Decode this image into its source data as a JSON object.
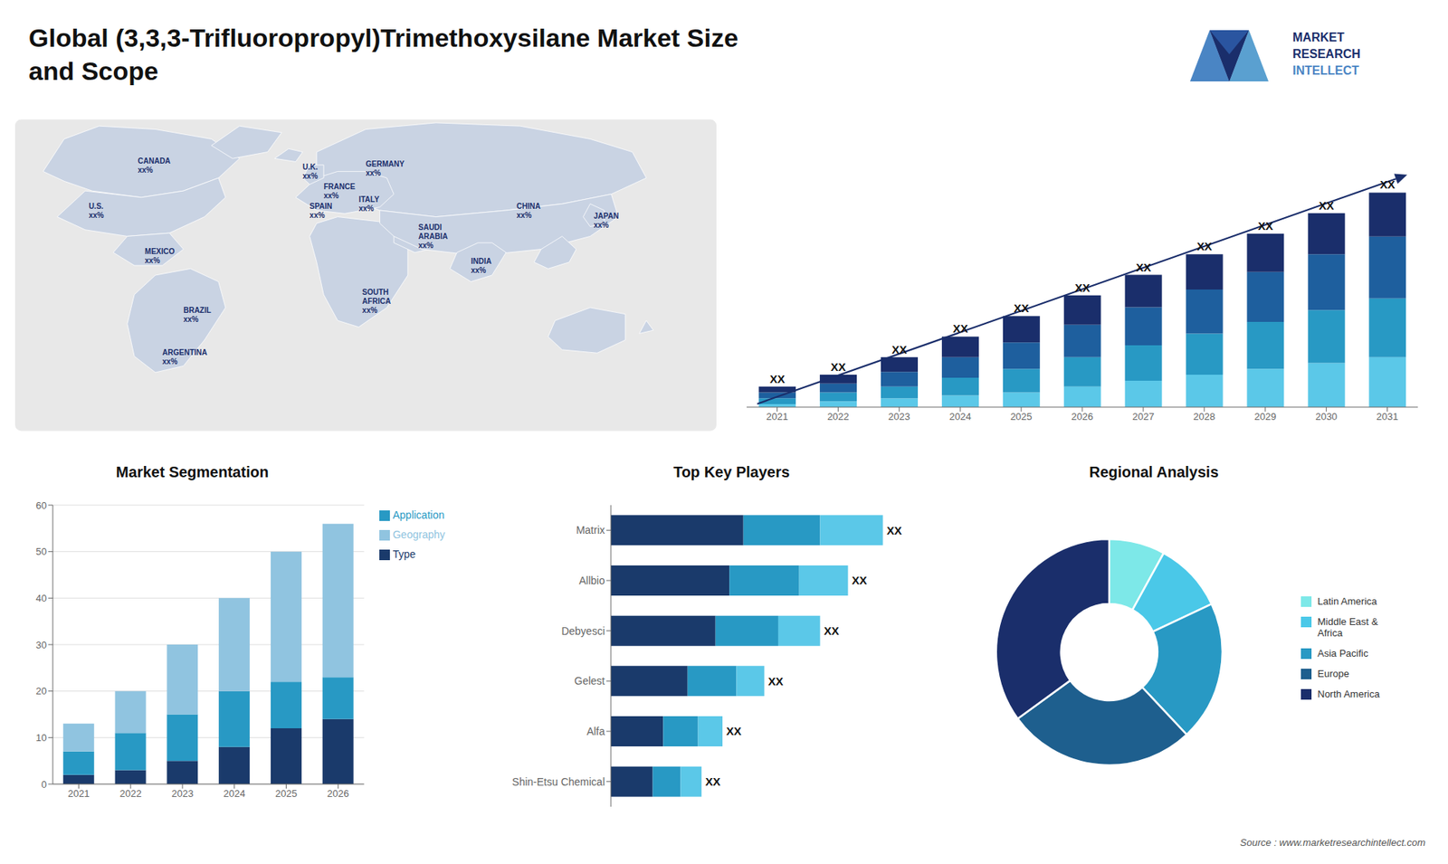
{
  "title": "Global (3,3,3-Trifluoropropyl)Trimethoxysilane Market Size\nand Scope",
  "annotations": [
    "MARKET",
    "RESEARCH",
    "INTELLECT",
    "Source : www.marketresearchintellect.com"
  ],
  "chart_data": [
    {
      "type": "map",
      "annotations": [
        "CANADA\nxx%",
        "U.S.\nxx%",
        "MEXICO\nxx%",
        "BRAZIL\nxx%",
        "ARGENTINA\nxx%",
        "U.K.\nxx%",
        "FRANCE\nxx%",
        "SPAIN\nxx%",
        "GERMANY\nxx%",
        "ITALY\nxx%",
        "SAUDI\nARABIA\nxx%",
        "SOUTH\nAFRICA\nxx%",
        "CHINA\nxx%",
        "JAPAN\nxx%",
        "INDIA\nxx%"
      ]
    },
    {
      "type": "bar",
      "stacked": true,
      "categories": [
        "2021",
        "2022",
        "2023",
        "2024",
        "2025",
        "2026",
        "2027",
        "2028",
        "2029",
        "2030",
        "2031"
      ],
      "series": [
        {
          "color": "#5bc8e8",
          "values": [
            1,
            2,
            3,
            4,
            5,
            7,
            9,
            11,
            13,
            15,
            17
          ]
        },
        {
          "color": "#2899c4",
          "values": [
            2,
            3,
            4,
            6,
            8,
            10,
            12,
            14,
            16,
            18,
            20
          ]
        },
        {
          "color": "#1e5f9e",
          "values": [
            2,
            3,
            5,
            7,
            9,
            11,
            13,
            15,
            17,
            19,
            21
          ]
        },
        {
          "color": "#1a2e6b",
          "values": [
            2,
            3,
            5,
            7,
            9,
            10,
            11,
            12,
            13,
            14,
            15
          ]
        }
      ],
      "ylim": [
        0,
        94.9
      ],
      "tick_labels": "x",
      "annotations": [
        "XX",
        "XX",
        "XX",
        "XX",
        "XX",
        "XX",
        "XX",
        "XX",
        "XX",
        "XX",
        "XX"
      ]
    },
    {
      "type": "bar",
      "title": "Market Segmentation",
      "stacked": true,
      "categories": [
        "2021",
        "2022",
        "2023",
        "2024",
        "2025",
        "2026"
      ],
      "series": [
        {
          "name": "Type",
          "color": "#1a3a6b",
          "values": [
            2,
            3,
            5,
            8,
            12,
            14
          ]
        },
        {
          "name": "Application",
          "color": "#2899c4",
          "values": [
            5,
            8,
            10,
            12,
            10,
            9
          ]
        },
        {
          "name": "Geography",
          "color": "#90c4e0",
          "values": [
            6,
            9,
            15,
            20,
            28,
            33
          ]
        }
      ],
      "ylim": [
        0,
        60
      ],
      "yticks": [
        0,
        10,
        20,
        30,
        40,
        50,
        60
      ],
      "grid": true,
      "legend": "right"
    },
    {
      "type": "bar",
      "title": "Top Key Players",
      "orientation": "horizontal",
      "stacked": true,
      "categories": [
        "Matrix",
        "Allbio",
        "Debyesci",
        "Gelest",
        "Alfa",
        "Shin-Etsu Chemical"
      ],
      "series": [
        {
          "color": "#1a3a6b",
          "values": [
            38,
            34,
            30,
            22,
            15,
            12
          ]
        },
        {
          "color": "#2899c4",
          "values": [
            22,
            20,
            18,
            14,
            10,
            8
          ]
        },
        {
          "color": "#5bc8e8",
          "values": [
            18,
            14,
            12,
            8,
            7,
            6
          ]
        }
      ],
      "xlim": [
        0,
        95.16
      ],
      "tick_labels": "y",
      "annotations": [
        "XX",
        "XX",
        "XX",
        "XX",
        "XX",
        "XX"
      ]
    },
    {
      "type": "pie",
      "title": "Regional Analysis",
      "categories": [
        "Latin America",
        "Middle East &\nAfrica",
        "Asia Pacific",
        "Europe",
        "North America"
      ],
      "values": [
        8,
        10,
        20,
        27,
        35
      ],
      "colors": [
        "#7de8e8",
        "#4ac8e8",
        "#2899c4",
        "#1e5f8e",
        "#1a2e6b"
      ],
      "legend": "right"
    }
  ]
}
